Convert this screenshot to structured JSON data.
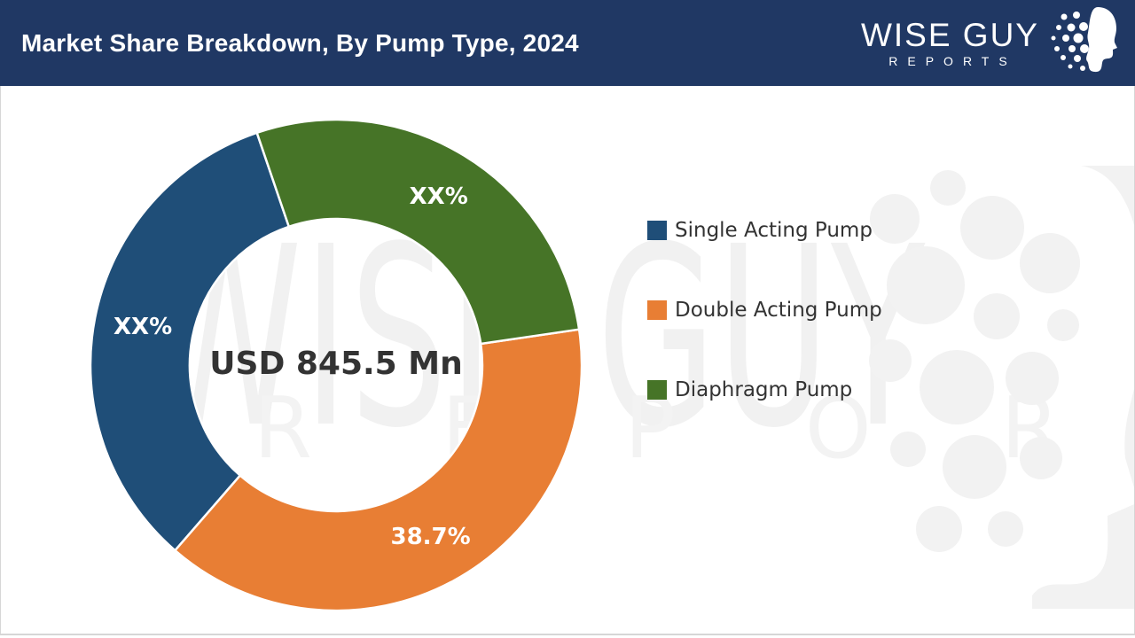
{
  "header": {
    "title": "Market Share Breakdown, By Pump Type, 2024",
    "logo": {
      "line1": "WISE GUY",
      "line2": "REPORTS"
    }
  },
  "watermark": {
    "line1": "WISE GUY",
    "line2": "R E P O R T S"
  },
  "chart_data": {
    "type": "pie",
    "subtype": "donut",
    "center_label": "USD 845.5 Mn",
    "start_angle_deg": 108.8,
    "direction": "counterclockwise",
    "legend_position": "right",
    "slices": [
      {
        "name": "Single Acting Pump",
        "value": 33.4,
        "label": "XX%",
        "color": "#1f4e78"
      },
      {
        "name": "Double Acting Pump",
        "value": 38.7,
        "label": "38.7%",
        "color": "#e87e34"
      },
      {
        "name": "Diaphragm Pump",
        "value": 27.9,
        "label": "XX%",
        "color": "#467427"
      }
    ]
  }
}
